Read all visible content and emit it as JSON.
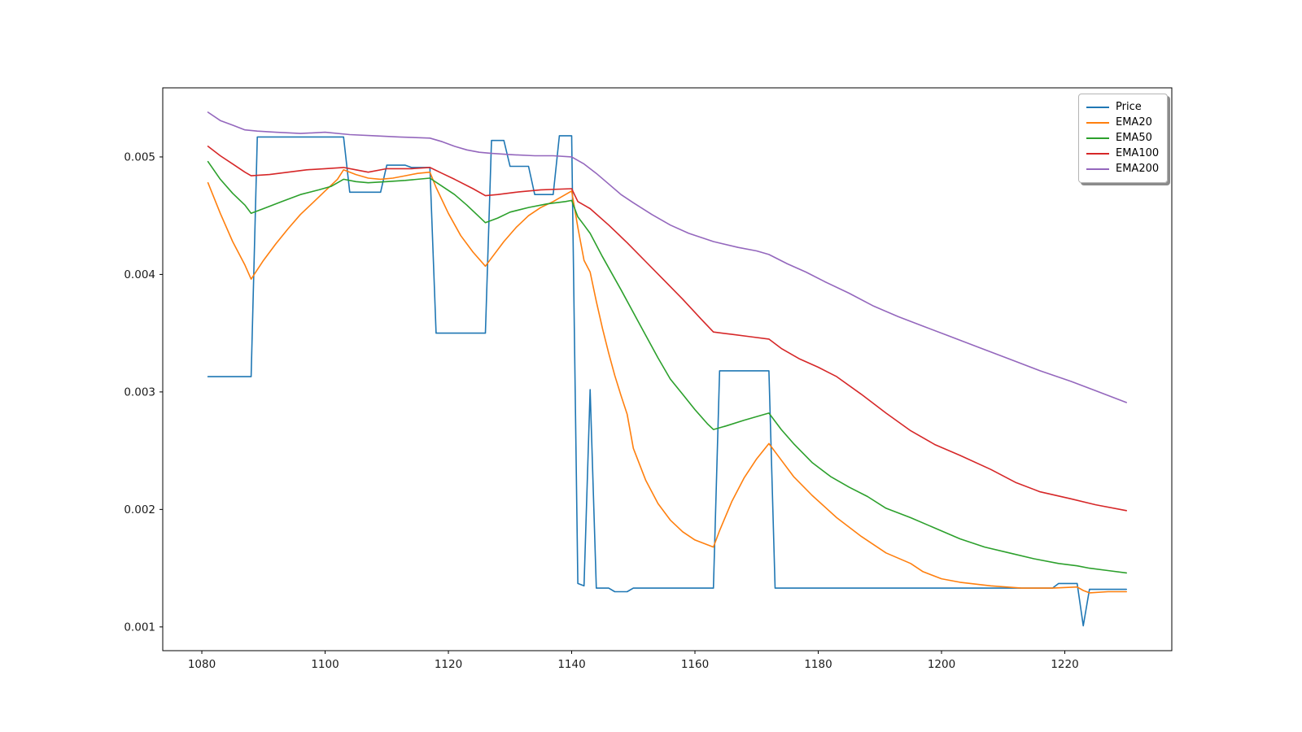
{
  "figure": {
    "background": "#ffffff",
    "axis_color": "#000000",
    "tick_label_color": "#1a1a1a"
  },
  "chart_data": {
    "type": "line",
    "title": "",
    "xlabel": "",
    "ylabel": "",
    "grid": false,
    "legend_position": "upper-right",
    "xlim": [
      1073.66,
      1237.36
    ],
    "ylim": [
      0.000798,
      0.005588
    ],
    "x_ticks": [
      1080,
      1100,
      1120,
      1140,
      1160,
      1180,
      1200,
      1220
    ],
    "x_tick_labels": [
      "1080",
      "1100",
      "1120",
      "1140",
      "1160",
      "1180",
      "1200",
      "1220"
    ],
    "y_ticks": [
      0.001,
      0.002,
      0.003,
      0.004,
      0.005
    ],
    "y_tick_labels": [
      "0.001",
      "0.002",
      "0.003",
      "0.004",
      "0.005"
    ],
    "series": [
      {
        "name": "Price",
        "color": "#1f77b4",
        "points": [
          [
            1081,
            0.00313
          ],
          [
            1088,
            0.00313
          ],
          [
            1089,
            0.00517
          ],
          [
            1103,
            0.00517
          ],
          [
            1104,
            0.0047
          ],
          [
            1109,
            0.0047
          ],
          [
            1110,
            0.00493
          ],
          [
            1113,
            0.00493
          ],
          [
            1114,
            0.00491
          ],
          [
            1117,
            0.00491
          ],
          [
            1118,
            0.0035
          ],
          [
            1126,
            0.0035
          ],
          [
            1127,
            0.00514
          ],
          [
            1129,
            0.00514
          ],
          [
            1130,
            0.00492
          ],
          [
            1133,
            0.00492
          ],
          [
            1134,
            0.00468
          ],
          [
            1137,
            0.00468
          ],
          [
            1138,
            0.00518
          ],
          [
            1140,
            0.00518
          ],
          [
            1141,
            0.00137
          ],
          [
            1142,
            0.00135
          ],
          [
            1143,
            0.00302
          ],
          [
            1144,
            0.00133
          ],
          [
            1146,
            0.00133
          ],
          [
            1147,
            0.0013
          ],
          [
            1149,
            0.0013
          ],
          [
            1150,
            0.00133
          ],
          [
            1163,
            0.00133
          ],
          [
            1164,
            0.00318
          ],
          [
            1172,
            0.00318
          ],
          [
            1173,
            0.00133
          ],
          [
            1218,
            0.00133
          ],
          [
            1219,
            0.00137
          ],
          [
            1222,
            0.00137
          ],
          [
            1223,
            0.00101
          ],
          [
            1224,
            0.00132
          ],
          [
            1230,
            0.00132
          ]
        ]
      },
      {
        "name": "EMA20",
        "color": "#ff7f0e",
        "points": [
          [
            1081,
            0.00478
          ],
          [
            1083,
            0.00452
          ],
          [
            1085,
            0.00428
          ],
          [
            1087,
            0.00408
          ],
          [
            1088,
            0.00396
          ],
          [
            1090,
            0.00412
          ],
          [
            1092,
            0.00426
          ],
          [
            1094,
            0.00439
          ],
          [
            1096,
            0.00451
          ],
          [
            1098,
            0.00461
          ],
          [
            1100,
            0.00471
          ],
          [
            1102,
            0.00481
          ],
          [
            1103,
            0.00489
          ],
          [
            1105,
            0.00485
          ],
          [
            1107,
            0.00482
          ],
          [
            1109,
            0.00481
          ],
          [
            1111,
            0.00482
          ],
          [
            1113,
            0.00484
          ],
          [
            1115,
            0.00486
          ],
          [
            1117,
            0.00487
          ],
          [
            1118,
            0.00474
          ],
          [
            1120,
            0.00452
          ],
          [
            1122,
            0.00433
          ],
          [
            1124,
            0.00419
          ],
          [
            1126,
            0.00407
          ],
          [
            1127,
            0.00414
          ],
          [
            1129,
            0.00428
          ],
          [
            1131,
            0.0044
          ],
          [
            1133,
            0.0045
          ],
          [
            1135,
            0.00457
          ],
          [
            1137,
            0.00462
          ],
          [
            1139,
            0.00468
          ],
          [
            1140,
            0.00471
          ],
          [
            1141,
            0.0044
          ],
          [
            1142,
            0.00412
          ],
          [
            1143,
            0.00402
          ],
          [
            1144,
            0.00377
          ],
          [
            1145,
            0.00354
          ],
          [
            1146,
            0.00333
          ],
          [
            1147,
            0.00314
          ],
          [
            1148,
            0.00297
          ],
          [
            1149,
            0.00281
          ],
          [
            1150,
            0.00252
          ],
          [
            1152,
            0.00225
          ],
          [
            1154,
            0.00205
          ],
          [
            1156,
            0.00191
          ],
          [
            1158,
            0.00181
          ],
          [
            1160,
            0.00174
          ],
          [
            1162,
            0.0017
          ],
          [
            1163,
            0.00168
          ],
          [
            1164,
            0.00182
          ],
          [
            1166,
            0.00207
          ],
          [
            1168,
            0.00227
          ],
          [
            1170,
            0.00243
          ],
          [
            1172,
            0.00256
          ],
          [
            1174,
            0.00242
          ],
          [
            1176,
            0.00228
          ],
          [
            1179,
            0.00212
          ],
          [
            1183,
            0.00193
          ],
          [
            1187,
            0.00177
          ],
          [
            1191,
            0.00163
          ],
          [
            1195,
            0.00154
          ],
          [
            1197,
            0.00147
          ],
          [
            1200,
            0.00141
          ],
          [
            1203,
            0.00138
          ],
          [
            1208,
            0.00135
          ],
          [
            1213,
            0.00133
          ],
          [
            1218,
            0.00133
          ],
          [
            1222,
            0.00134
          ],
          [
            1223,
            0.00131
          ],
          [
            1224,
            0.00129
          ],
          [
            1227,
            0.0013
          ],
          [
            1230,
            0.0013
          ]
        ]
      },
      {
        "name": "EMA50",
        "color": "#2ca02c",
        "points": [
          [
            1081,
            0.00496
          ],
          [
            1083,
            0.00481
          ],
          [
            1085,
            0.00469
          ],
          [
            1087,
            0.00459
          ],
          [
            1088,
            0.00452
          ],
          [
            1090,
            0.00456
          ],
          [
            1093,
            0.00462
          ],
          [
            1096,
            0.00468
          ],
          [
            1099,
            0.00472
          ],
          [
            1101,
            0.00475
          ],
          [
            1103,
            0.00481
          ],
          [
            1105,
            0.00479
          ],
          [
            1107,
            0.00478
          ],
          [
            1110,
            0.00479
          ],
          [
            1113,
            0.0048
          ],
          [
            1117,
            0.00482
          ],
          [
            1119,
            0.00475
          ],
          [
            1121,
            0.00468
          ],
          [
            1123,
            0.00459
          ],
          [
            1125,
            0.00449
          ],
          [
            1126,
            0.00444
          ],
          [
            1128,
            0.00448
          ],
          [
            1130,
            0.00453
          ],
          [
            1133,
            0.00457
          ],
          [
            1136,
            0.0046
          ],
          [
            1139,
            0.00462
          ],
          [
            1140,
            0.00463
          ],
          [
            1141,
            0.00449
          ],
          [
            1142,
            0.00442
          ],
          [
            1143,
            0.00435
          ],
          [
            1145,
            0.00415
          ],
          [
            1148,
            0.00387
          ],
          [
            1151,
            0.00358
          ],
          [
            1154,
            0.00329
          ],
          [
            1156,
            0.00311
          ],
          [
            1158,
            0.00298
          ],
          [
            1160,
            0.00285
          ],
          [
            1162,
            0.00273
          ],
          [
            1163,
            0.00268
          ],
          [
            1165,
            0.00271
          ],
          [
            1168,
            0.00276
          ],
          [
            1172,
            0.00282
          ],
          [
            1174,
            0.00268
          ],
          [
            1176,
            0.00256
          ],
          [
            1179,
            0.0024
          ],
          [
            1182,
            0.00228
          ],
          [
            1185,
            0.00219
          ],
          [
            1188,
            0.00211
          ],
          [
            1191,
            0.00201
          ],
          [
            1195,
            0.00193
          ],
          [
            1199,
            0.00184
          ],
          [
            1203,
            0.00175
          ],
          [
            1207,
            0.00168
          ],
          [
            1211,
            0.00163
          ],
          [
            1215,
            0.00158
          ],
          [
            1219,
            0.00154
          ],
          [
            1222,
            0.00152
          ],
          [
            1224,
            0.0015
          ],
          [
            1227,
            0.00148
          ],
          [
            1230,
            0.00146
          ]
        ]
      },
      {
        "name": "EMA100",
        "color": "#d62728",
        "points": [
          [
            1081,
            0.00509
          ],
          [
            1083,
            0.00501
          ],
          [
            1085,
            0.00494
          ],
          [
            1087,
            0.00487
          ],
          [
            1088,
            0.00484
          ],
          [
            1091,
            0.00485
          ],
          [
            1094,
            0.00487
          ],
          [
            1097,
            0.00489
          ],
          [
            1100,
            0.0049
          ],
          [
            1103,
            0.00491
          ],
          [
            1105,
            0.00489
          ],
          [
            1107,
            0.00487
          ],
          [
            1110,
            0.0049
          ],
          [
            1114,
            0.0049
          ],
          [
            1117,
            0.00491
          ],
          [
            1119,
            0.00486
          ],
          [
            1121,
            0.00481
          ],
          [
            1124,
            0.00473
          ],
          [
            1126,
            0.00467
          ],
          [
            1128,
            0.00468
          ],
          [
            1131,
            0.0047
          ],
          [
            1135,
            0.00472
          ],
          [
            1140,
            0.00473
          ],
          [
            1141,
            0.00462
          ],
          [
            1142,
            0.00459
          ],
          [
            1143,
            0.00456
          ],
          [
            1146,
            0.00442
          ],
          [
            1149,
            0.00427
          ],
          [
            1152,
            0.00411
          ],
          [
            1155,
            0.00395
          ],
          [
            1158,
            0.00379
          ],
          [
            1161,
            0.00362
          ],
          [
            1163,
            0.00351
          ],
          [
            1166,
            0.00349
          ],
          [
            1169,
            0.00347
          ],
          [
            1172,
            0.00345
          ],
          [
            1174,
            0.00337
          ],
          [
            1177,
            0.00328
          ],
          [
            1180,
            0.00321
          ],
          [
            1183,
            0.00313
          ],
          [
            1187,
            0.00298
          ],
          [
            1191,
            0.00282
          ],
          [
            1195,
            0.00267
          ],
          [
            1199,
            0.00255
          ],
          [
            1203,
            0.00246
          ],
          [
            1208,
            0.00234
          ],
          [
            1212,
            0.00223
          ],
          [
            1216,
            0.00215
          ],
          [
            1221,
            0.00209
          ],
          [
            1225,
            0.00204
          ],
          [
            1230,
            0.00199
          ]
        ]
      },
      {
        "name": "EMA200",
        "color": "#9467bd",
        "points": [
          [
            1081,
            0.00538
          ],
          [
            1083,
            0.00531
          ],
          [
            1085,
            0.00527
          ],
          [
            1087,
            0.00523
          ],
          [
            1089,
            0.00522
          ],
          [
            1092,
            0.00521
          ],
          [
            1096,
            0.0052
          ],
          [
            1100,
            0.00521
          ],
          [
            1104,
            0.00519
          ],
          [
            1108,
            0.00518
          ],
          [
            1112,
            0.00517
          ],
          [
            1117,
            0.00516
          ],
          [
            1119,
            0.00513
          ],
          [
            1121,
            0.00509
          ],
          [
            1123,
            0.00506
          ],
          [
            1125,
            0.00504
          ],
          [
            1127,
            0.00503
          ],
          [
            1130,
            0.00502
          ],
          [
            1134,
            0.00501
          ],
          [
            1137,
            0.00501
          ],
          [
            1140,
            0.005
          ],
          [
            1142,
            0.00494
          ],
          [
            1144,
            0.00486
          ],
          [
            1146,
            0.00477
          ],
          [
            1148,
            0.00468
          ],
          [
            1150,
            0.00461
          ],
          [
            1153,
            0.00451
          ],
          [
            1156,
            0.00442
          ],
          [
            1159,
            0.00435
          ],
          [
            1163,
            0.00428
          ],
          [
            1167,
            0.00423
          ],
          [
            1170,
            0.0042
          ],
          [
            1172,
            0.00417
          ],
          [
            1175,
            0.00409
          ],
          [
            1178,
            0.00402
          ],
          [
            1181,
            0.00394
          ],
          [
            1185,
            0.00384
          ],
          [
            1189,
            0.00373
          ],
          [
            1193,
            0.00364
          ],
          [
            1197,
            0.00356
          ],
          [
            1201,
            0.00348
          ],
          [
            1206,
            0.00338
          ],
          [
            1211,
            0.00328
          ],
          [
            1216,
            0.00318
          ],
          [
            1221,
            0.00309
          ],
          [
            1225,
            0.00301
          ],
          [
            1230,
            0.00291
          ]
        ]
      }
    ]
  }
}
